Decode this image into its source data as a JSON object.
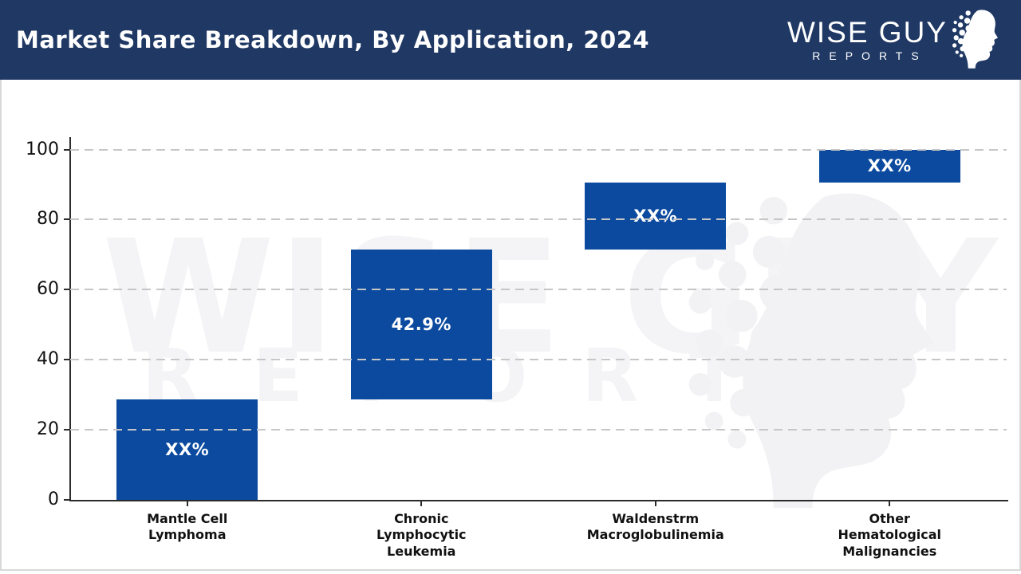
{
  "header": {
    "title": "Market Share Breakdown, By Application, 2024",
    "logo": {
      "line1": "WISE GUY",
      "line2": "REPORTS"
    }
  },
  "watermark": {
    "line1": "WISE GUY",
    "line2": "REPORTS"
  },
  "chart_data": {
    "type": "bar",
    "subtype": "waterfall",
    "title": "Market Share Breakdown, By Application, 2024",
    "categories": [
      "Mantle Cell Lymphoma",
      "Chronic Lymphocytic Leukemia",
      "Waldenstrm Macroglobulinemia",
      "Other Hematological Malignancies"
    ],
    "category_lines": [
      [
        "Mantle Cell",
        "Lymphoma"
      ],
      [
        "Chronic",
        "Lymphocytic",
        "Leukemia"
      ],
      [
        "Waldenstrm",
        "Macroglobulinemia"
      ],
      [
        "Other",
        "Hematological",
        "Malignancies"
      ]
    ],
    "segments": [
      {
        "start": 0,
        "end": 28.6
      },
      {
        "start": 28.6,
        "end": 71.5
      },
      {
        "start": 71.5,
        "end": 90.5
      },
      {
        "start": 90.5,
        "end": 100
      }
    ],
    "values": [
      28.6,
      42.9,
      19.0,
      9.5
    ],
    "bar_labels": [
      "XX%",
      "42.9%",
      "XX%",
      "XX%"
    ],
    "xlabel": "",
    "ylabel": "",
    "ylim": [
      0,
      100
    ],
    "yticks": [
      0,
      20,
      40,
      60,
      80,
      100
    ],
    "grid": "horizontal-dashed",
    "legend": "none",
    "bar_color": "#0B4A9F",
    "bar_label_color": "#FFFFFF"
  },
  "colors": {
    "header_bg": "#1F3864",
    "bar": "#0B4A9F",
    "grid": "#C6C6C6",
    "axis": "#2B2B2B",
    "watermark": "#F3F3F5",
    "frame_border": "#D8D8D8"
  }
}
